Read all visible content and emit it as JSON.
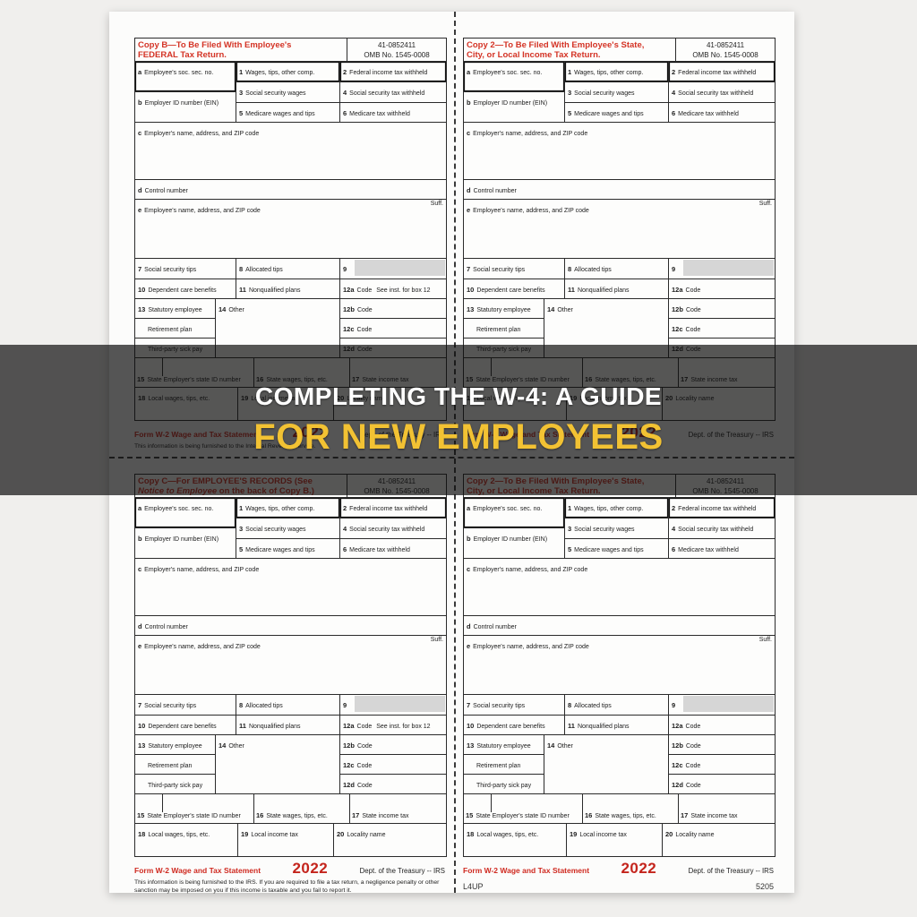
{
  "page": {
    "background_color": "#f0efed",
    "paper_color": "#fcfcfb"
  },
  "banner": {
    "line1": "COMPLETING THE W-4: A GUIDE",
    "line2": "FOR NEW EMPLOYEES",
    "line1_color": "#ffffff",
    "line2_color": "#f2c233",
    "overlay_color": "rgba(14,14,14,0.70)"
  },
  "boxes": {
    "a": {
      "n": "a",
      "t": "Employee's soc. sec. no."
    },
    "b": {
      "n": "b",
      "t": "Employer ID number (EIN)"
    },
    "w1": {
      "n": "1",
      "t": "Wages, tips, other comp."
    },
    "w2": {
      "n": "2",
      "t": "Federal income tax withheld"
    },
    "w3": {
      "n": "3",
      "t": "Social security wages"
    },
    "w4": {
      "n": "4",
      "t": "Social security tax withheld"
    },
    "w5": {
      "n": "5",
      "t": "Medicare wages and tips"
    },
    "w6": {
      "n": "6",
      "t": "Medicare tax withheld"
    },
    "c": {
      "n": "c",
      "t": "Employer's name, address, and ZIP code"
    },
    "d": {
      "n": "d",
      "t": "Control number"
    },
    "e": {
      "n": "e",
      "t": "Employee's name, address, and ZIP code",
      "suff": "Suff."
    },
    "w7": {
      "n": "7",
      "t": "Social security tips"
    },
    "w8": {
      "n": "8",
      "t": "Allocated tips"
    },
    "w9": {
      "n": "9",
      "t": ""
    },
    "w10": {
      "n": "10",
      "t": "Dependent care benefits"
    },
    "w11": {
      "n": "11",
      "t": "Nonqualified plans"
    },
    "w12a": {
      "n": "12a",
      "t": "Code"
    },
    "w12b": {
      "n": "12b",
      "t": "Code"
    },
    "w12c": {
      "n": "12c",
      "t": "Code"
    },
    "w12d": {
      "n": "12d",
      "t": "Code"
    },
    "w13": {
      "n": "13",
      "t": "Statutory employee"
    },
    "w13b": {
      "t": "Retirement plan"
    },
    "w13c": {
      "t": "Third-party sick pay"
    },
    "w14": {
      "n": "14",
      "t": "Other"
    },
    "w15": {
      "n": "15",
      "t": "State Employer's state ID number"
    },
    "w16": {
      "n": "16",
      "t": "State wages, tips, etc."
    },
    "w17": {
      "n": "17",
      "t": "State income tax"
    },
    "w18": {
      "n": "18",
      "t": "Local wages, tips, etc."
    },
    "w19": {
      "n": "19",
      "t": "Local income tax"
    },
    "w20": {
      "n": "20",
      "t": "Locality name"
    }
  },
  "footer": {
    "form_title": "Form W-2 Wage and Tax Statement",
    "year": "2022",
    "dept": "Dept. of the Treasury -- IRS"
  },
  "forms": [
    {
      "copy_id": "copy-b-federal",
      "title1": "Copy B—To Be Filed With Employee's",
      "title2_italic": "",
      "title2": "FEDERAL Tax Return.",
      "id_number": "41-0852411",
      "omb": "OMB No. 1545-0008",
      "box12a_note": "See inst. for box 12",
      "fine_print": "This information is being furnished to the Internal Revenue Service.",
      "corner_left": "",
      "corner_right": ""
    },
    {
      "copy_id": "copy-2-state-top",
      "title1": "Copy 2—To Be Filed With Employee's State,",
      "title2_italic": "",
      "title2": "City, or Local Income Tax Return.",
      "id_number": "41-0852411",
      "omb": "OMB No. 1545-0008",
      "box12a_note": "",
      "fine_print": "",
      "corner_left": "",
      "corner_right": ""
    },
    {
      "copy_id": "copy-c-employee-records",
      "title1": "Copy C—For EMPLOYEE'S RECORDS (See",
      "title2_italic": "Notice to Employee",
      "title2": " on the back of Copy B.)",
      "id_number": "41-0852411",
      "omb": "OMB No. 1545-0008",
      "box12a_note": "See inst. for box 12",
      "fine_print": "This information is being furnished to the IRS. If you are required to file a tax return, a negligence penalty or other sanction may be imposed on you if this income is taxable and you fail to report it.",
      "corner_left": "",
      "corner_right": ""
    },
    {
      "copy_id": "copy-2-state-bottom",
      "title1": "Copy 2—To Be Filed With Employee's State,",
      "title2_italic": "",
      "title2": "City, or Local Income Tax Return.",
      "id_number": "41-0852411",
      "omb": "OMB No. 1545-0008",
      "box12a_note": "",
      "fine_print": "",
      "corner_left": "L4UP",
      "corner_right": "5205"
    }
  ]
}
